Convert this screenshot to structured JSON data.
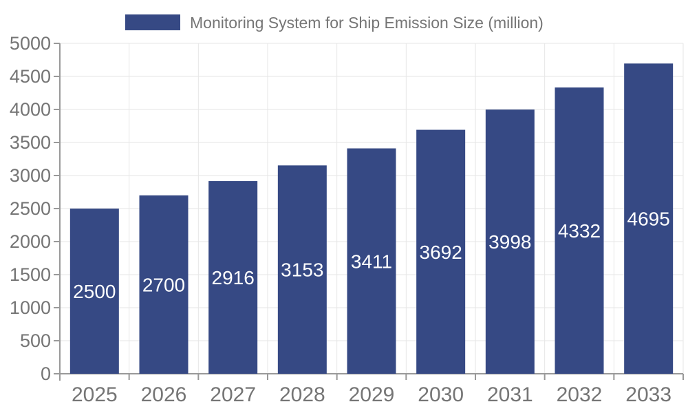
{
  "legend": {
    "label": "Monitoring System for Ship Emission Size (million)"
  },
  "chart_data": {
    "type": "bar",
    "title": "Monitoring System for Ship Emission Size (million)",
    "series_name": "Monitoring System for Ship Emission Size (million)",
    "categories": [
      "2025",
      "2026",
      "2027",
      "2028",
      "2029",
      "2030",
      "2031",
      "2032",
      "2033"
    ],
    "values": [
      2500,
      2700,
      2916,
      3153,
      3411,
      3692,
      3998,
      4332,
      4695
    ],
    "value_labels": [
      "2500",
      "2700",
      "2916",
      "3153",
      "3411",
      "3692",
      "3998",
      "4332",
      "4695"
    ],
    "xlabel": "",
    "ylabel": "",
    "ylim": [
      0,
      5000
    ],
    "ytick_step": 500,
    "ytick_labels": [
      "0",
      "500",
      "1000",
      "1500",
      "2000",
      "2500",
      "3000",
      "3500",
      "4000",
      "4500",
      "5000"
    ],
    "grid": true,
    "legend_position": "top",
    "colors": {
      "bar": "#364984",
      "grid": "#e6e6e6",
      "axis": "#999999",
      "tick_label": "#757575",
      "value_label": "#ffffff",
      "legend_label": "#757575",
      "background": "#ffffff"
    }
  }
}
